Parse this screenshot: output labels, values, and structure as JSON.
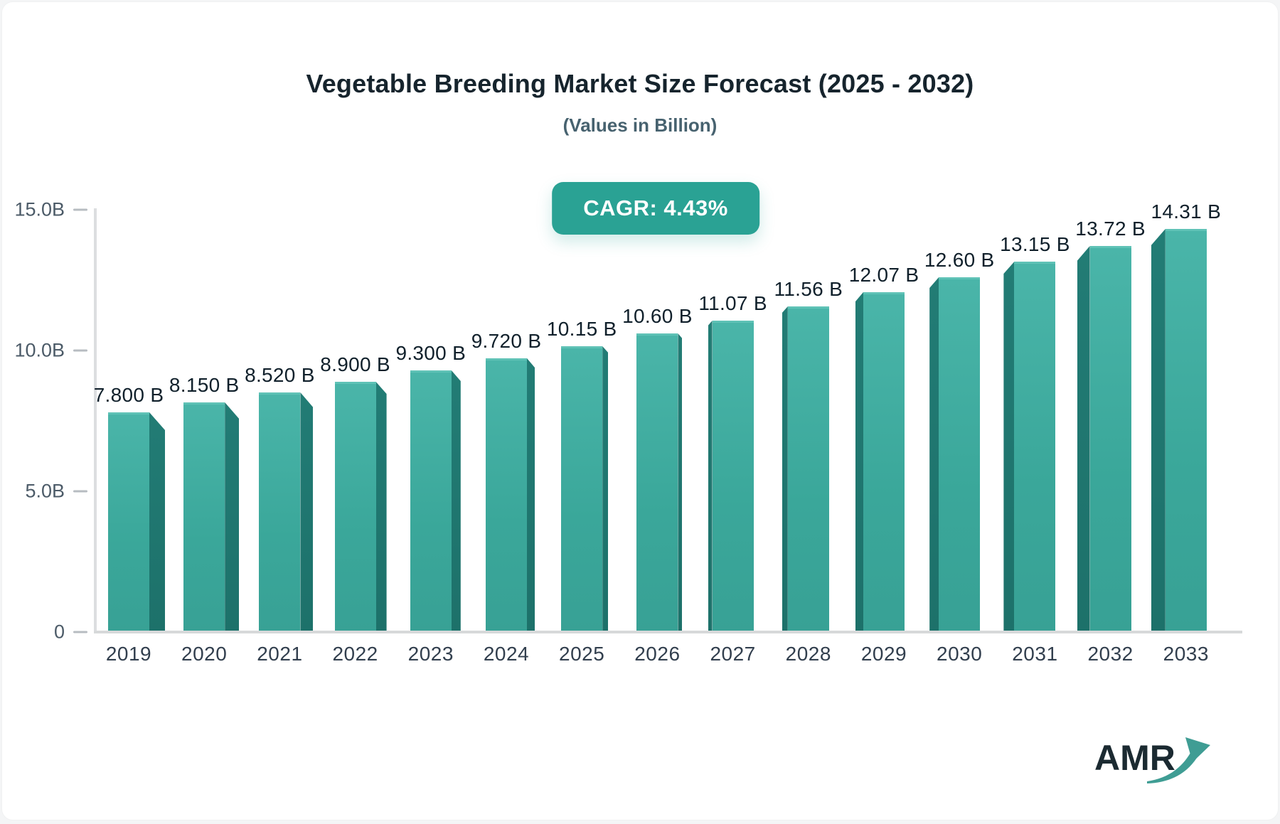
{
  "title": "Vegetable Breeding Market Size Forecast (2025 - 2032)",
  "subtitle": "(Values in Billion)",
  "cagr_badge": {
    "label": "CAGR: 4.43%"
  },
  "logo": {
    "text": "AMR",
    "arrow_icon": "growth-arrow-icon"
  },
  "chart_data": {
    "type": "bar",
    "title": "Vegetable Breeding Market Size Forecast (2025 - 2032)",
    "subtitle": "(Values in Billion)",
    "cagr_label": "CAGR: 4.43%",
    "categories": [
      "2019",
      "2020",
      "2021",
      "2022",
      "2023",
      "2024",
      "2025",
      "2026",
      "2027",
      "2028",
      "2029",
      "2030",
      "2031",
      "2032",
      "2033"
    ],
    "values": [
      7.8,
      8.15,
      8.52,
      8.9,
      9.3,
      9.72,
      10.15,
      10.6,
      11.07,
      11.56,
      12.07,
      12.6,
      13.15,
      13.72,
      14.31
    ],
    "value_labels": [
      "7.800 B",
      "8.150 B",
      "8.520 B",
      "8.900 B",
      "9.300 B",
      "9.720 B",
      "10.15 B",
      "10.60 B",
      "11.07 B",
      "11.56 B",
      "12.07 B",
      "12.60 B",
      "13.15 B",
      "13.72 B",
      "14.31 B"
    ],
    "value_unit": "B",
    "xlabel": "",
    "ylabel": "",
    "ylim": [
      0,
      15
    ],
    "yticks": {
      "values": [
        15,
        10,
        5,
        0
      ],
      "labels": [
        "15.0B",
        "10.0B",
        "5.0B",
        "0"
      ]
    },
    "grid": false,
    "legend": "none",
    "bar_style": "3d-perspective",
    "colors": {
      "bar_face": "#3dada0",
      "bar_side": "#1e746d",
      "bar_highlight": "#5fc2b6",
      "axis_line": "#d8dadb",
      "badge_bg": "#2aa294",
      "badge_text": "#ffffff",
      "title_text": "#16242d",
      "subtitle_text": "#47626f",
      "value_label_text": "#10202b",
      "tick_label_text": "#4c5b68"
    }
  }
}
